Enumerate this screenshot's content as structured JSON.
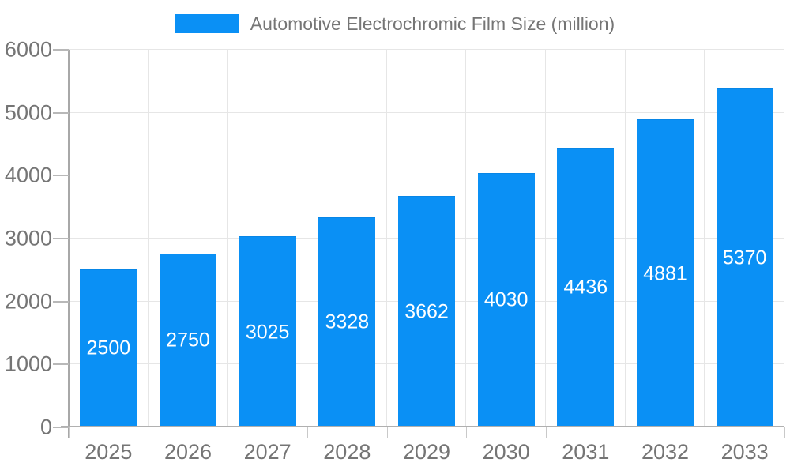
{
  "legend": {
    "label": "Automotive Electrochromic Film Size (million)"
  },
  "chart_data": {
    "type": "bar",
    "title": "Automotive Electrochromic Film Size (million)",
    "categories": [
      "2025",
      "2026",
      "2027",
      "2028",
      "2029",
      "2030",
      "2031",
      "2032",
      "2033"
    ],
    "series": [
      {
        "name": "Automotive Electrochromic Film Size (million)",
        "values": [
          2500,
          2750,
          3025,
          3328,
          3662,
          4030,
          4436,
          4881,
          5370
        ],
        "color": "#0a90f5"
      }
    ],
    "bar_labels_visible": true,
    "xlabel": "",
    "ylabel": "",
    "ylim": [
      0,
      6000
    ],
    "yticks": [
      0,
      1000,
      2000,
      3000,
      4000,
      5000,
      6000
    ],
    "grid": true,
    "legend_position": "top",
    "colors": {
      "bar": "#0a90f5",
      "bar_edge": "#0886e6",
      "bar_label": "#ffffff",
      "axis_text": "#757575",
      "gridline": "#e6e6e6",
      "axis_line": "#b0b0b0",
      "background": "#ffffff"
    }
  }
}
